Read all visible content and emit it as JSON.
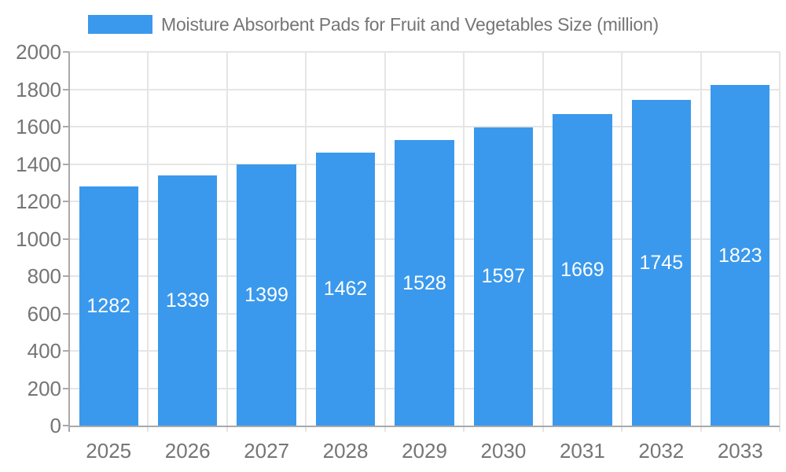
{
  "chart_data": {
    "type": "bar",
    "title": "Moisture Absorbent Pads for Fruit and Vegetables Size (million)",
    "categories": [
      "2025",
      "2026",
      "2027",
      "2028",
      "2029",
      "2030",
      "2031",
      "2032",
      "2033"
    ],
    "values": [
      1282,
      1339,
      1399,
      1462,
      1528,
      1597,
      1669,
      1745,
      1823
    ],
    "xlabel": "",
    "ylabel": "",
    "ylim": [
      0,
      2000
    ],
    "ytick_step": 200,
    "yticks": [
      0,
      200,
      400,
      600,
      800,
      1000,
      1200,
      1400,
      1600,
      1800,
      2000
    ],
    "grid": true,
    "legend_position": "top-left",
    "bar_label_position": "inside-center",
    "colors": {
      "bar": "#3A99EC",
      "bar_label": "#FFFFFF",
      "axis_text": "#757575",
      "title_text": "#757575",
      "axis_line": "#A9A9A9",
      "grid_line": "#E5E5E5",
      "background": "#FFFFFF"
    }
  }
}
